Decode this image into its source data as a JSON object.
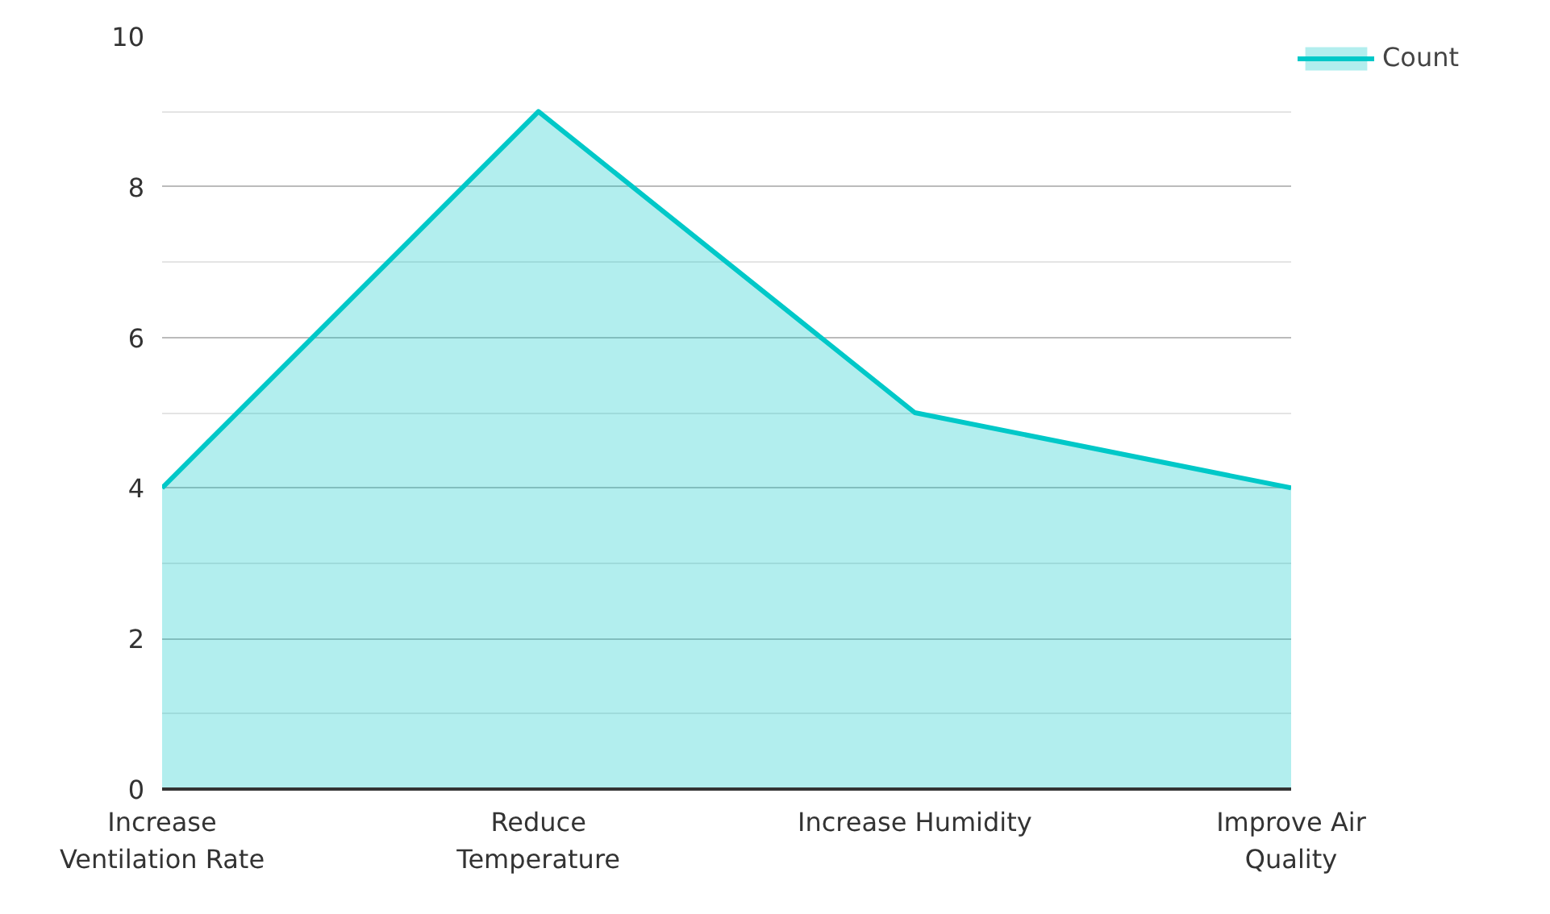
{
  "chart_data": {
    "type": "area",
    "categories": [
      "Increase Ventilation Rate",
      "Reduce Temperature",
      "Increase Humidity",
      "Improve Air Quality"
    ],
    "series": [
      {
        "name": "Count",
        "color": "#00c8c8",
        "values": [
          4,
          9,
          5,
          4
        ]
      }
    ],
    "ylim": [
      0,
      10
    ],
    "yticks": [
      0,
      2,
      4,
      6,
      8,
      10
    ],
    "grid": "y",
    "legend": "top right"
  }
}
